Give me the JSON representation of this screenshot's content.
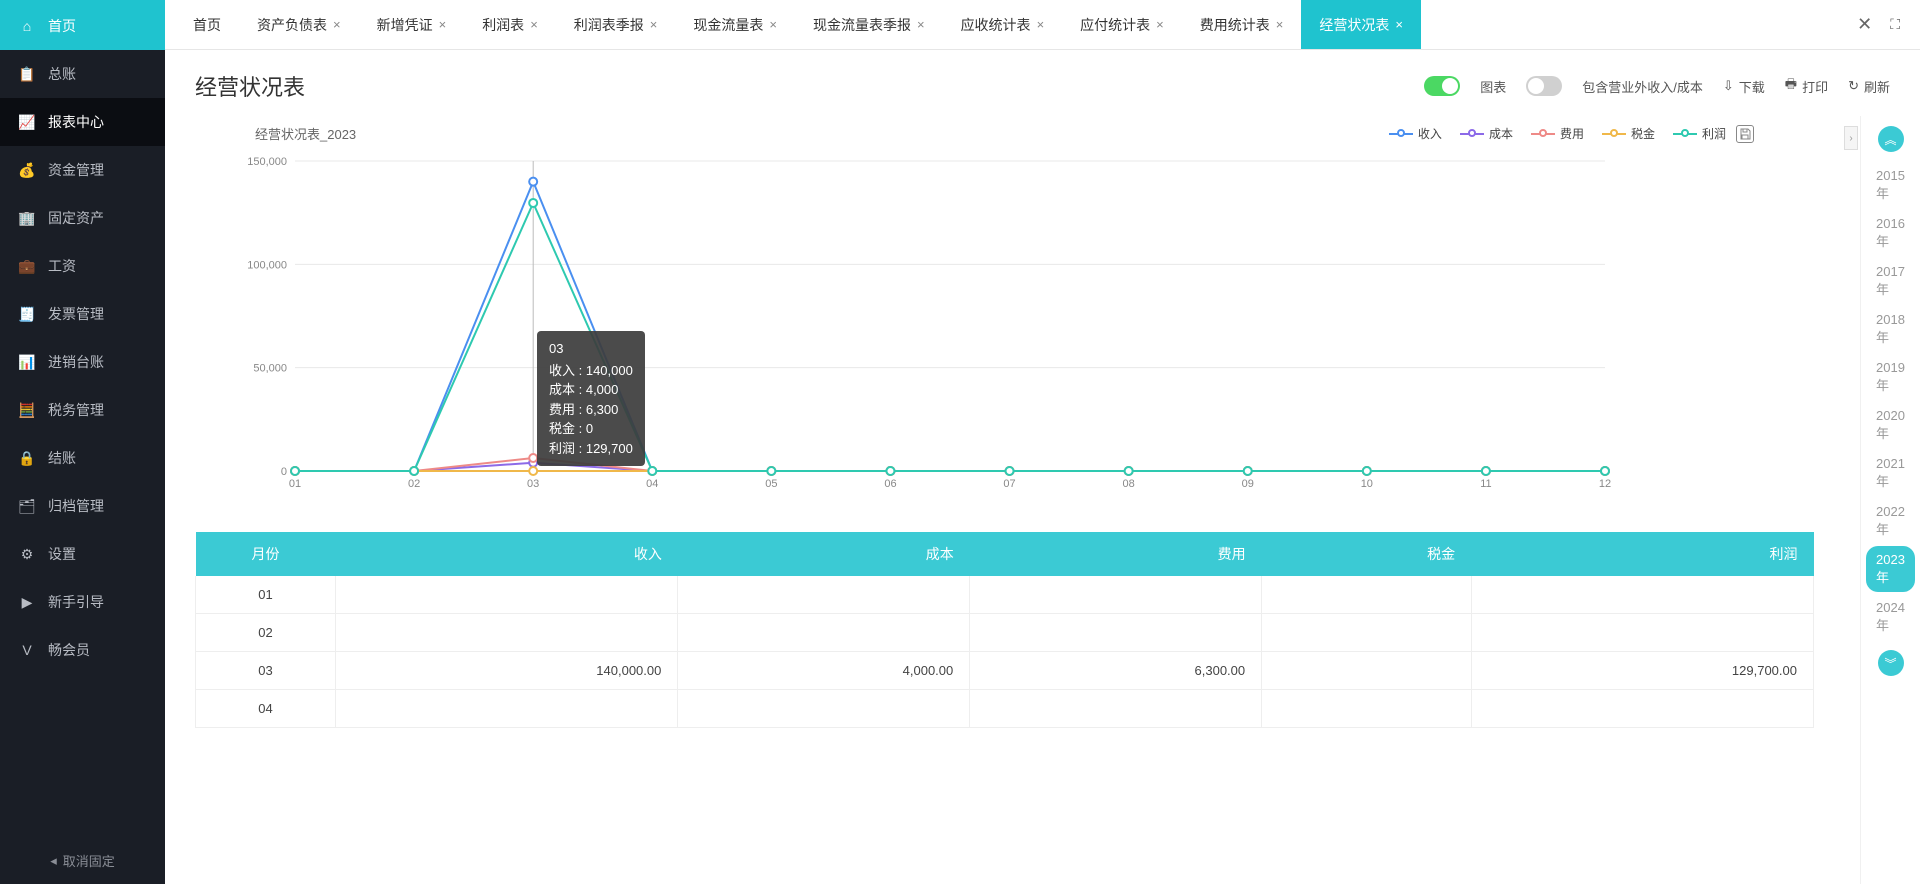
{
  "sidebar": {
    "items": [
      {
        "label": "首页",
        "key": "home"
      },
      {
        "label": "总账",
        "key": "ledger"
      },
      {
        "label": "报表中心",
        "key": "reports"
      },
      {
        "label": "资金管理",
        "key": "funds"
      },
      {
        "label": "固定资产",
        "key": "assets"
      },
      {
        "label": "工资",
        "key": "salary"
      },
      {
        "label": "发票管理",
        "key": "invoice"
      },
      {
        "label": "进销台账",
        "key": "inventory"
      },
      {
        "label": "税务管理",
        "key": "tax"
      },
      {
        "label": "结账",
        "key": "closing"
      },
      {
        "label": "归档管理",
        "key": "archive"
      },
      {
        "label": "设置",
        "key": "settings"
      },
      {
        "label": "新手引导",
        "key": "guide"
      },
      {
        "label": "畅会员",
        "key": "vip"
      }
    ],
    "footer": "取消固定"
  },
  "tabs": {
    "items": [
      {
        "label": "首页",
        "closable": false
      },
      {
        "label": "资产负债表",
        "closable": true
      },
      {
        "label": "新增凭证",
        "closable": true
      },
      {
        "label": "利润表",
        "closable": true
      },
      {
        "label": "利润表季报",
        "closable": true
      },
      {
        "label": "现金流量表",
        "closable": true
      },
      {
        "label": "现金流量表季报",
        "closable": true
      },
      {
        "label": "应收统计表",
        "closable": true
      },
      {
        "label": "应付统计表",
        "closable": true
      },
      {
        "label": "费用统计表",
        "closable": true
      },
      {
        "label": "经营状况表",
        "closable": true
      }
    ],
    "active_index": 10
  },
  "page": {
    "title": "经营状况表",
    "toggle_chart": {
      "on": true,
      "label": "图表"
    },
    "toggle_extra": {
      "on": false,
      "label": "包含营业外收入/成本"
    },
    "actions": {
      "download": "下载",
      "print": "打印",
      "refresh": "刷新"
    }
  },
  "chart": {
    "title": "经营状况表_2023",
    "legend": [
      {
        "label": "收入",
        "color": "#4a8ff0"
      },
      {
        "label": "成本",
        "color": "#8c6ae8"
      },
      {
        "label": "费用",
        "color": "#ee8a87"
      },
      {
        "label": "税金",
        "color": "#f0b84a"
      },
      {
        "label": "利润",
        "color": "#2ec9b0"
      }
    ],
    "y_ticks": [
      0,
      50000,
      100000,
      150000
    ],
    "y_labels": [
      "0",
      "50,000",
      "100,000",
      "150,000"
    ],
    "x_labels": [
      "01",
      "02",
      "03",
      "04",
      "05",
      "06",
      "07",
      "08",
      "09",
      "10",
      "11",
      "12"
    ],
    "series": {
      "收入": [
        0,
        0,
        140000,
        0,
        0,
        0,
        0,
        0,
        0,
        0,
        0,
        0
      ],
      "成本": [
        0,
        0,
        4000,
        0,
        0,
        0,
        0,
        0,
        0,
        0,
        0,
        0
      ],
      "费用": [
        0,
        0,
        6300,
        0,
        0,
        0,
        0,
        0,
        0,
        0,
        0,
        0
      ],
      "税金": [
        0,
        0,
        0,
        0,
        0,
        0,
        0,
        0,
        0,
        0,
        0,
        0
      ],
      "利润": [
        0,
        0,
        129700,
        0,
        0,
        0,
        0,
        0,
        0,
        0,
        0,
        0
      ]
    },
    "colors": {
      "收入": "#4a8ff0",
      "成本": "#8c6ae8",
      "费用": "#ee8a87",
      "税金": "#f0b84a",
      "利润": "#2ec9b0"
    },
    "grid_color": "#e8e8e8",
    "ymax": 150000,
    "tooltip": {
      "title": "03",
      "lines": [
        {
          "label": "收入",
          "value": "140,000"
        },
        {
          "label": "成本",
          "value": "4,000"
        },
        {
          "label": "费用",
          "value": "6,300"
        },
        {
          "label": "税金",
          "value": "0"
        },
        {
          "label": "利润",
          "value": "129,700"
        }
      ]
    }
  },
  "table": {
    "columns": [
      "月份",
      "收入",
      "成本",
      "费用",
      "税金",
      "利润"
    ],
    "rows": [
      {
        "month": "01",
        "cells": [
          "",
          "",
          "",
          "",
          ""
        ]
      },
      {
        "month": "02",
        "cells": [
          "",
          "",
          "",
          "",
          ""
        ]
      },
      {
        "month": "03",
        "cells": [
          "140,000.00",
          "4,000.00",
          "6,300.00",
          "",
          "129,700.00"
        ]
      },
      {
        "month": "04",
        "cells": [
          "",
          "",
          "",
          "",
          ""
        ]
      }
    ]
  },
  "years": {
    "items": [
      "2015年",
      "2016年",
      "2017年",
      "2018年",
      "2019年",
      "2020年",
      "2021年",
      "2022年",
      "2023年",
      "2024年"
    ],
    "active": "2023年"
  }
}
